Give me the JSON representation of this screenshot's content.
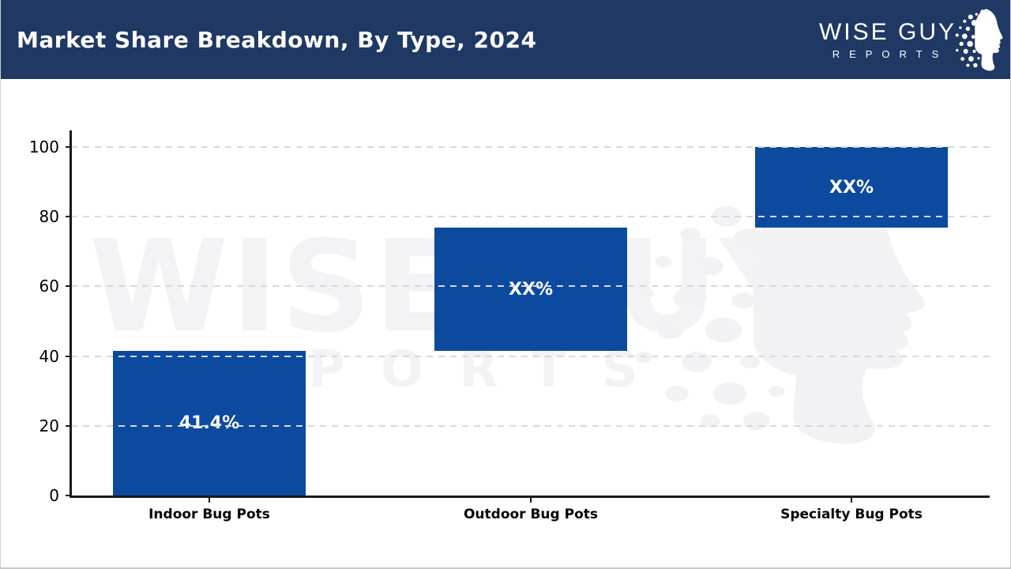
{
  "header": {
    "title": "Market Share Breakdown, By Type, 2024",
    "bg_color": "#1f3864",
    "brand": {
      "line1": "WISE GUY",
      "line2": "REPORTS"
    }
  },
  "watermark": {
    "line1": "WISE GUY",
    "line2": "REPORTS"
  },
  "chart_data": {
    "type": "bar",
    "subtype": "waterfall",
    "title": "Market Share Breakdown, By Type, 2024",
    "categories": [
      "Indoor Bug Pots",
      "Outdoor Bug Pots",
      "Specialty Bug Pots"
    ],
    "series": [
      {
        "name": "Market Share (%)",
        "segments": [
          {
            "category": "Indoor Bug Pots",
            "start": 0,
            "end": 41.4,
            "label": "41.4%"
          },
          {
            "category": "Outdoor Bug Pots",
            "start": 41.4,
            "end": 76.8,
            "label": "XX%"
          },
          {
            "category": "Specialty Bug Pots",
            "start": 76.8,
            "end": 100,
            "label": "XX%"
          }
        ]
      }
    ],
    "xlabel": "",
    "ylabel": "",
    "ylim": [
      0,
      104.8
    ],
    "yticks": [
      0,
      20,
      40,
      60,
      80,
      100
    ],
    "grid": {
      "axis": "y",
      "style": "dashed",
      "color": "#d8d8d8"
    },
    "legend": "none",
    "colors": {
      "bar": "#0c4a9f",
      "bar_label": "#ffffff",
      "axis": "#1a1a1a",
      "tick_label": "#000000",
      "header_bg": "#1f3864",
      "watermark": "#f3f3f5"
    }
  }
}
